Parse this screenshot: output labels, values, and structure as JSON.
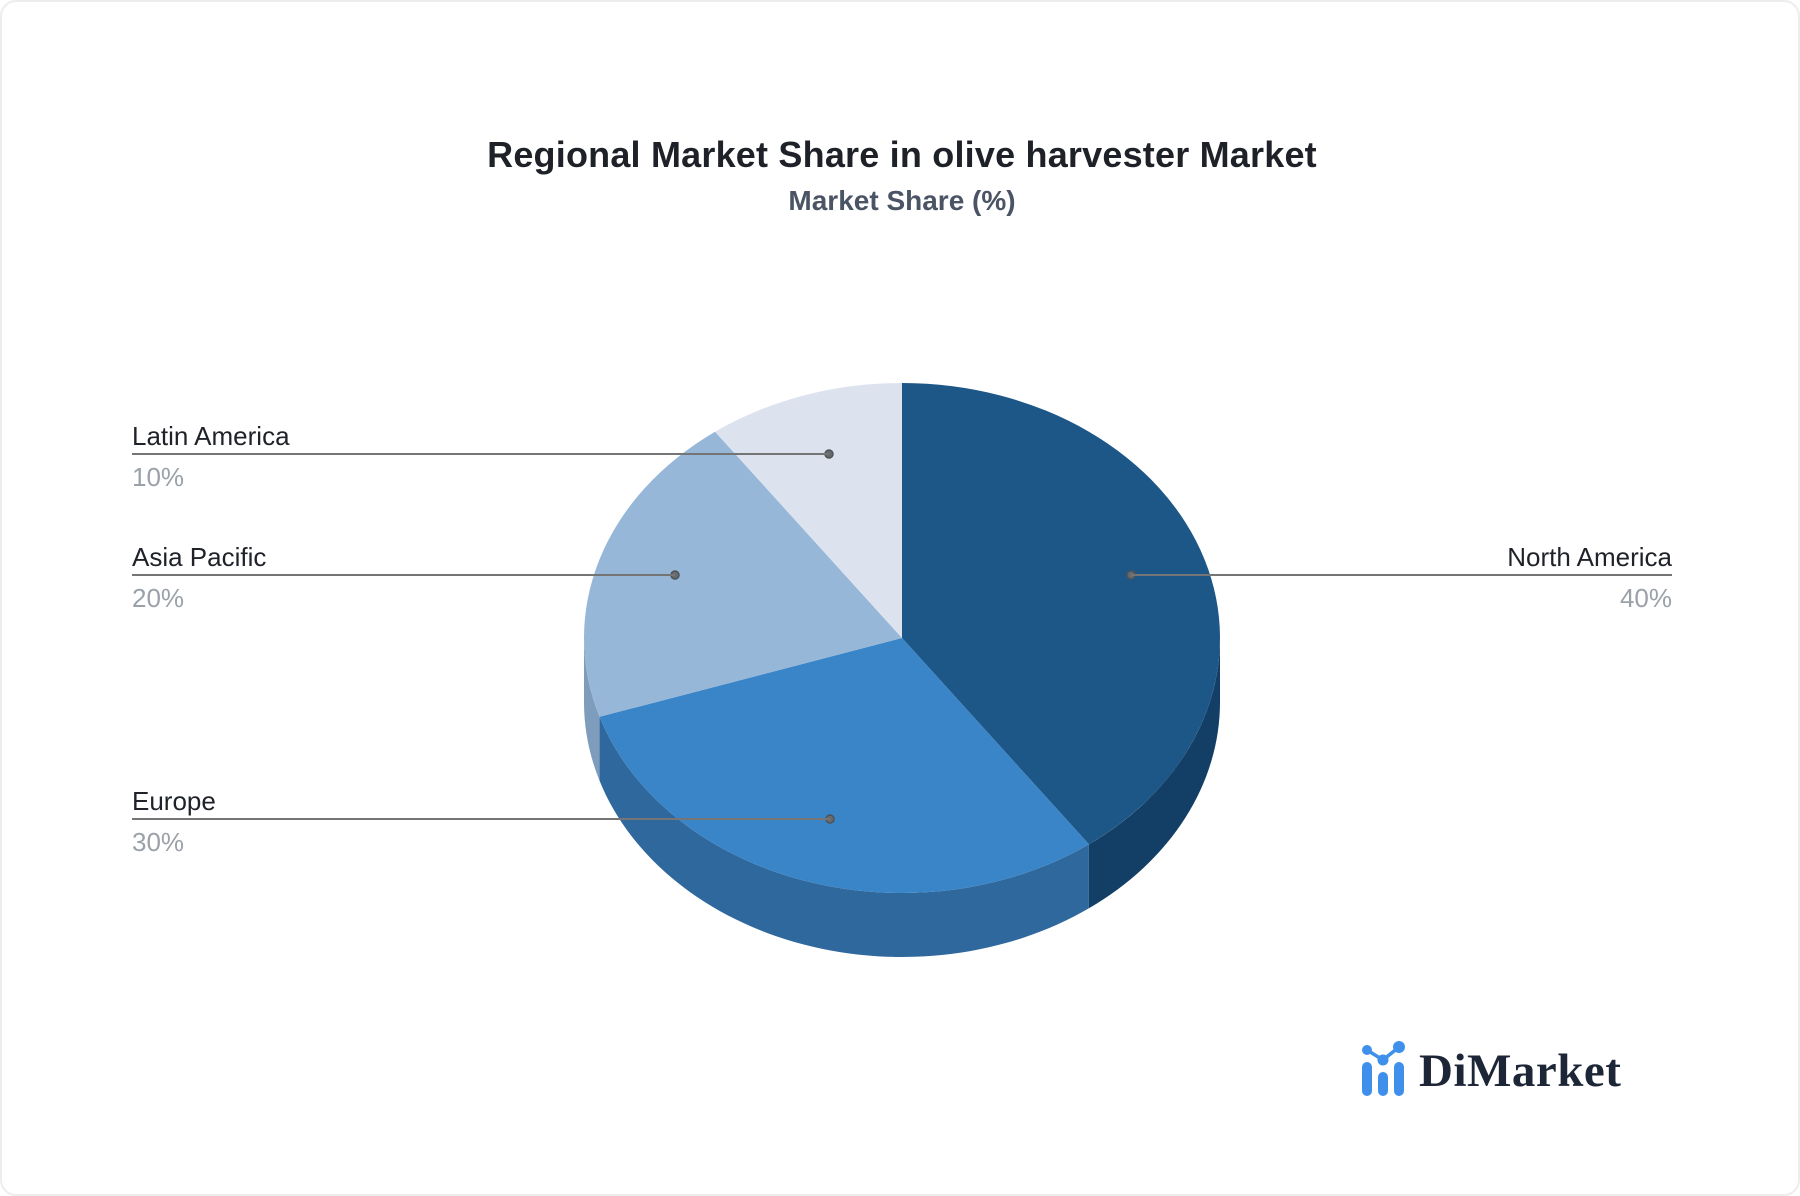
{
  "title": "Regional Market Share in olive harvester Market",
  "subtitle": "Market Share (%)",
  "logo": {
    "text": "DiMarket",
    "icon": "bar-line-chart-icon",
    "icon_color": "#3f90ea",
    "text_color": "#1d2637"
  },
  "chart_data": {
    "type": "pie",
    "style": "3d",
    "title": "Regional Market Share in olive harvester Market",
    "subtitle": "Market Share (%)",
    "unit": "%",
    "start": "top",
    "direction": "clockwise",
    "legend": "none, labels via leader lines",
    "categories": [
      "North America",
      "Europe",
      "Asia Pacific",
      "Latin America"
    ],
    "values": [
      40,
      30,
      20,
      10
    ],
    "labels": [
      "40%",
      "30%",
      "20%",
      "10%"
    ],
    "colors": [
      "#1d5787",
      "#3a85c8",
      "#97b7d9",
      "#dde3ee"
    ],
    "side_colors": [
      "#133f66",
      "#2f689d",
      "#7e9cbc",
      "#c9d2e0"
    ],
    "leader_line_color": "#757575",
    "dot_color": "#666b70",
    "name_color": "#1f2228",
    "pct_color": "#9ba1a8"
  }
}
